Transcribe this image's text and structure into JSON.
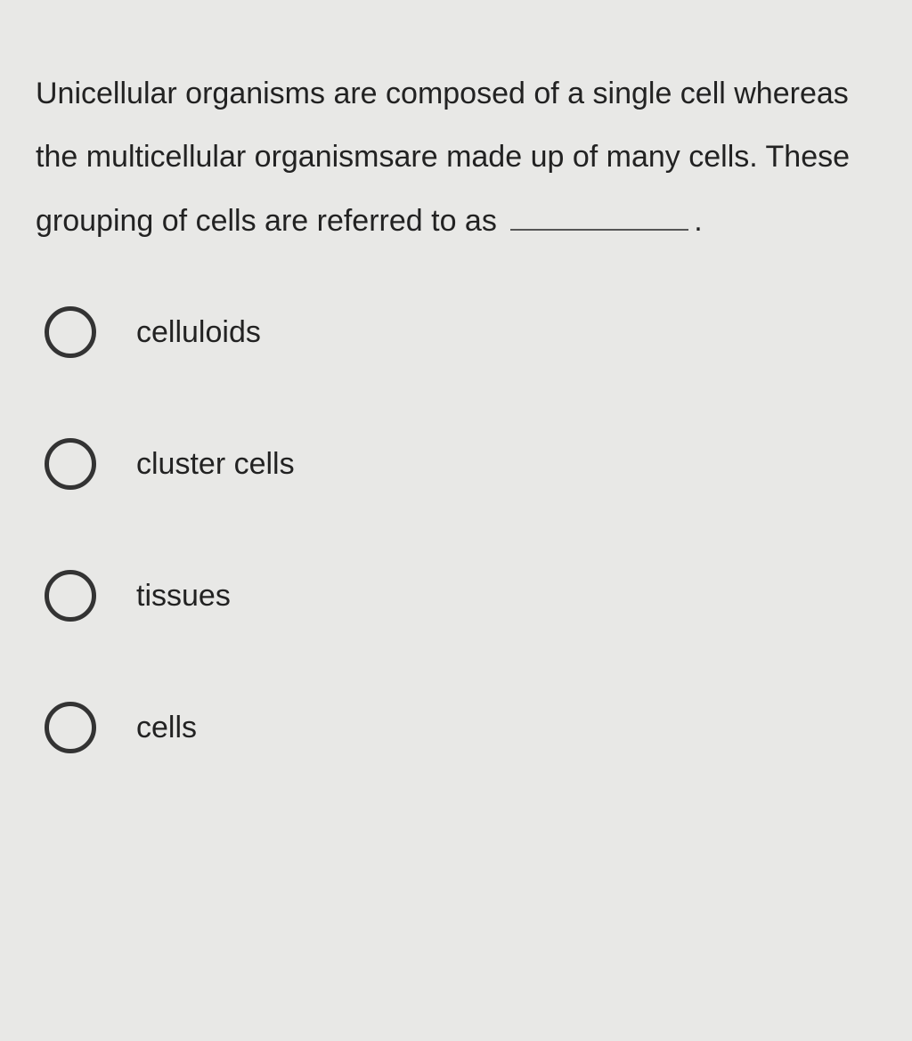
{
  "question": {
    "line1": "Unicellular organisms are composed of a single cell whereas",
    "line2": "the multicellular organismsare made up of many cells. These",
    "line3_before_blank": "grouping of cells are referred to as",
    "line3_after_blank": "."
  },
  "options": [
    {
      "label": "celluloids"
    },
    {
      "label": "cluster cells"
    },
    {
      "label": "tissues"
    },
    {
      "label": "cells"
    }
  ],
  "colors": {
    "background": "#e8e8e6",
    "text": "#222222",
    "radio_border": "#333333",
    "blank_line": "#555555"
  },
  "typography": {
    "question_fontsize": 34,
    "option_fontsize": 34,
    "line_height": 2.1
  }
}
